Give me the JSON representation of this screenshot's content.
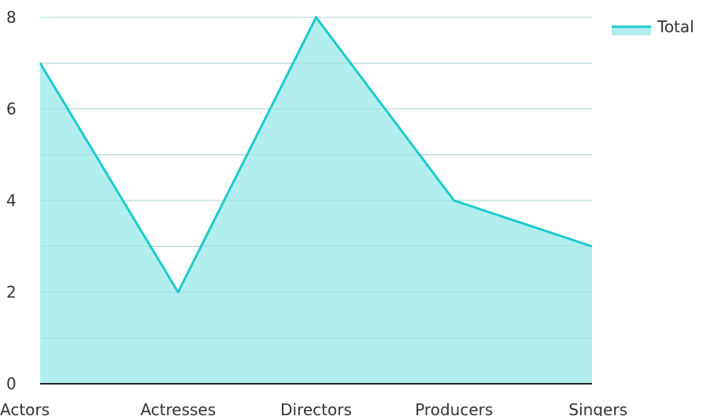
{
  "chart_data": {
    "type": "area",
    "categories": [
      "Actors",
      "Actresses",
      "Directors",
      "Producers",
      "Singers"
    ],
    "series": [
      {
        "name": "Total",
        "values": [
          7,
          2,
          8,
          4,
          3
        ]
      }
    ],
    "ylim": [
      0,
      8
    ],
    "y_ticks": [
      "0",
      "2",
      "4",
      "6",
      "8"
    ],
    "grid": true,
    "legend_position": "top-right",
    "colors": {
      "line": "#1ccbcb",
      "fill": "#b2eeee",
      "grid": "#cccccc",
      "axis": "#222222"
    }
  }
}
